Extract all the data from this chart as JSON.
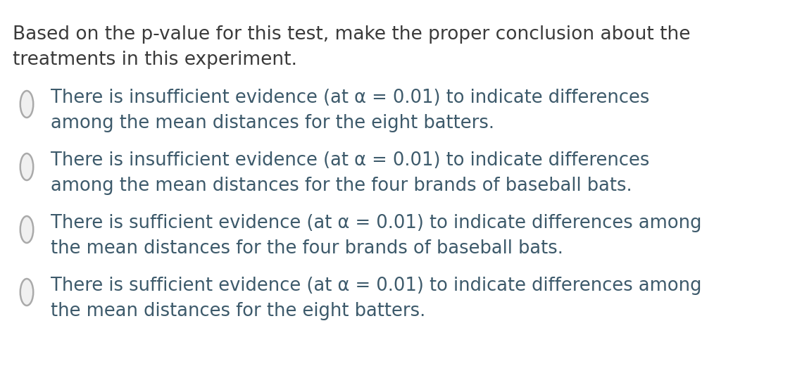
{
  "background_color": "#ffffff",
  "title_line1": "Based on the p-value for this test, make the proper conclusion about the",
  "title_line2": "treatments in this experiment.",
  "options": [
    {
      "line1": "There is insufficient evidence (at α = 0.01) to indicate differences",
      "line2": "among the mean distances for the eight batters."
    },
    {
      "line1": "There is insufficient evidence (at α = 0.01) to indicate differences",
      "line2": "among the mean distances for the four brands of baseball bats."
    },
    {
      "line1": "There is sufficient evidence (at α = 0.01) to indicate differences among",
      "line2": "the mean distances for the four brands of baseball bats."
    },
    {
      "line1": "There is sufficient evidence (at α = 0.01) to indicate differences among",
      "line2": "the mean distances for the eight batters."
    }
  ],
  "text_color": "#3d5a6b",
  "title_color": "#3a3a3a",
  "circle_edge_color": "#aaaaaa",
  "circle_fill_color": "#f0f0f0",
  "title_fontsize": 19.0,
  "option_fontsize": 18.5,
  "fig_width": 11.39,
  "fig_height": 5.54,
  "dpi": 100
}
